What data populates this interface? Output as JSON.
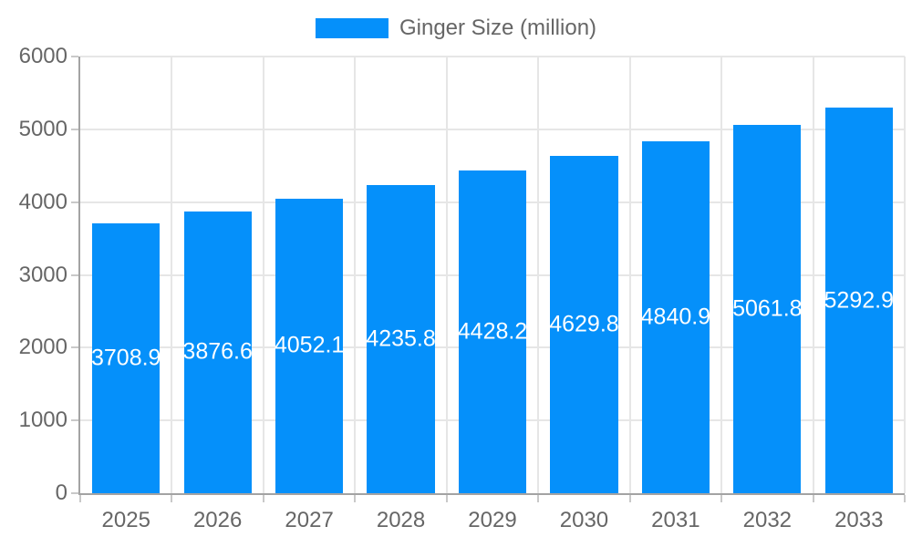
{
  "chart_data": {
    "type": "bar",
    "categories": [
      "2025",
      "2026",
      "2027",
      "2028",
      "2029",
      "2030",
      "2031",
      "2032",
      "2033"
    ],
    "series": [
      {
        "name": "Ginger Size (million)",
        "values": [
          3708.9,
          3876.6,
          4052.1,
          4235.8,
          4428.2,
          4629.8,
          4840.9,
          5061.8,
          5292.9
        ]
      }
    ],
    "xlabel": "",
    "ylabel": "",
    "ylim": [
      0,
      6000
    ],
    "y_ticks": [
      0,
      1000,
      2000,
      3000,
      4000,
      5000,
      6000
    ],
    "grid": true,
    "legend_position": "top",
    "value_label_position": "inside-center",
    "bar_fraction": 0.74
  },
  "colors": {
    "bar": "#0590fa",
    "grid": "#e6e6e6",
    "axis": "#a3a3a3",
    "tick": "#c9c9c9",
    "text": "#666666",
    "value_label": "#ffffff"
  }
}
